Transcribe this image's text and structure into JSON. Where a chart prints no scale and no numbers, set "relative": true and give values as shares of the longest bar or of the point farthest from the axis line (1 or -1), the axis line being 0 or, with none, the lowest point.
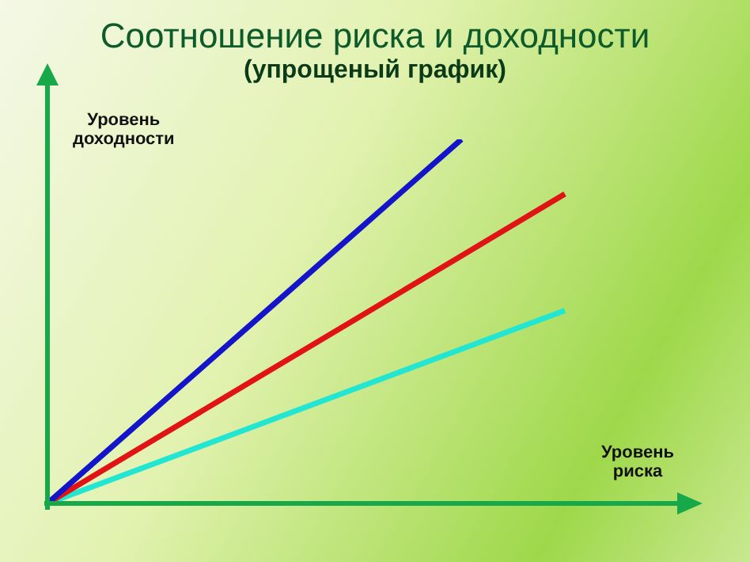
{
  "chart_data": {
    "type": "line",
    "title": "Соотношение риска и доходности",
    "subtitle": "(упрощеный график)",
    "xlabel": "Уровень риска",
    "ylabel": "Уровень доходности",
    "relative": true,
    "legend": false,
    "marker": "none",
    "line_style": "solid",
    "categories": [
      null,
      null,
      null,
      null,
      null,
      null
    ],
    "series": [
      {
        "color": "#1414c8",
        "values": [
          0,
          0.25,
          0.5,
          0.75,
          1,
          null
        ]
      },
      {
        "color": "#e01414",
        "values": [
          0,
          0.17,
          0.34,
          0.51,
          0.68,
          0.85
        ]
      },
      {
        "color": "#22e6d2",
        "values": [
          0,
          0.106,
          0.212,
          0.318,
          0.424,
          0.53
        ]
      }
    ]
  }
}
